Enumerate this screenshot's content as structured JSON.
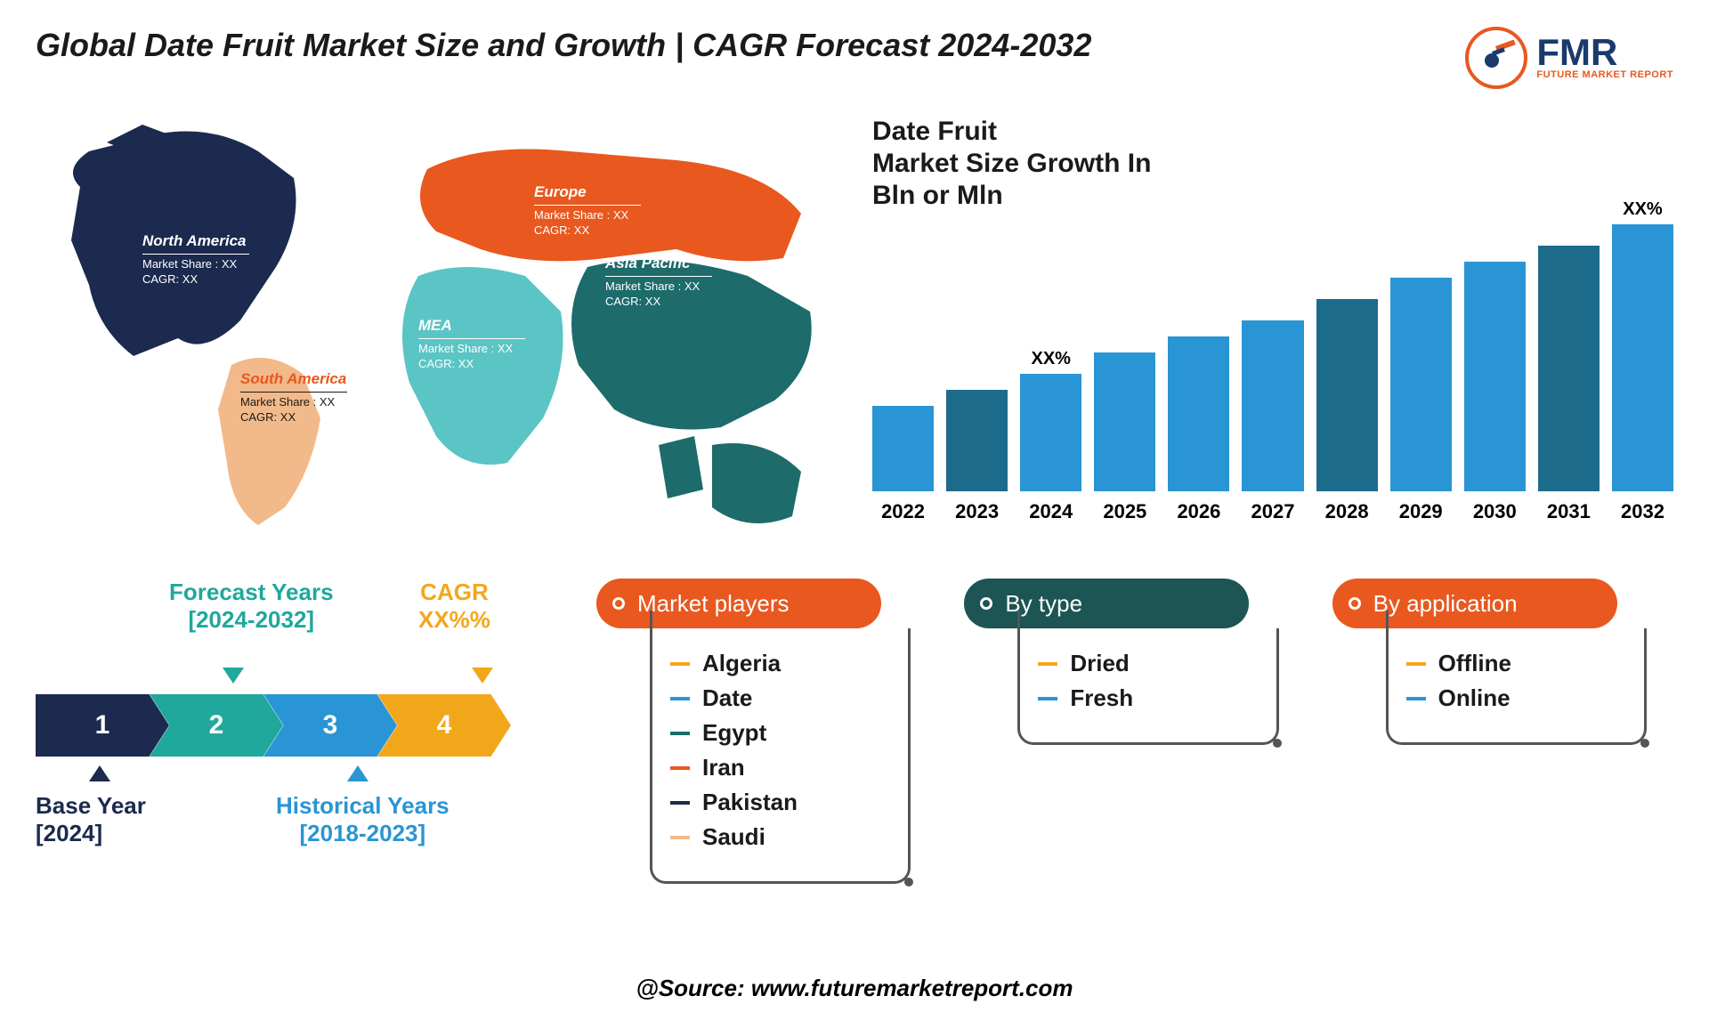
{
  "title": "Global Date Fruit Market Size and Growth | CAGR Forecast 2024-2032",
  "logo": {
    "fmr": "FMR",
    "sub": "FUTURE MARKET REPORT"
  },
  "colors": {
    "na": "#1b2a4e",
    "sa": "#f2b98a",
    "eu": "#e8581f",
    "mea": "#5bc4c4",
    "ap": "#1d6b6b",
    "bar_light": "#2a95d4",
    "bar_dark": "#1d6b8a",
    "tl1": "#1b2a4e",
    "tl2": "#1fa89b",
    "tl3": "#2a95d4",
    "tl4": "#f2a71b",
    "pill_players": "#e8581f",
    "pill_type": "#1d5454",
    "pill_app": "#e8581f",
    "text": "#1a1a1a",
    "teal_text": "#1fa89b",
    "blue_text": "#2a95d4",
    "orange_text": "#f2a71b"
  },
  "regions": {
    "na": {
      "name": "North America",
      "share": "Market Share : XX",
      "cagr": "CAGR: XX"
    },
    "sa": {
      "name": "South America",
      "share": "Market Share : XX",
      "cagr": "CAGR: XX"
    },
    "eu": {
      "name": "Europe",
      "share": "Market Share : XX",
      "cagr": "CAGR: XX"
    },
    "mea": {
      "name": "MEA",
      "share": "Market Share : XX",
      "cagr": "CAGR: XX"
    },
    "ap": {
      "name": "Asia Pacific",
      "share": "Market Share : XX",
      "cagr": "CAGR: XX"
    }
  },
  "barchart": {
    "title1": "Date Fruit",
    "title2": "Market Size Growth In",
    "title3": "Bln or Mln",
    "years": [
      "2022",
      "2023",
      "2024",
      "2025",
      "2026",
      "2027",
      "2028",
      "2029",
      "2030",
      "2031",
      "2032"
    ],
    "heights_pct": [
      32,
      38,
      44,
      52,
      58,
      64,
      72,
      80,
      86,
      92,
      100
    ],
    "dark_idx": [
      1,
      6,
      9
    ],
    "top_label": "XX%",
    "top_label_years": [
      "2024",
      "2032"
    ]
  },
  "timeline": {
    "base": {
      "label": "Base Year",
      "range": "[2024]"
    },
    "forecast": {
      "label": "Forecast Years",
      "range": "[2024-2032]"
    },
    "historical": {
      "label": "Historical Years",
      "range": "[2018-2023]"
    },
    "cagr": {
      "label": "CAGR",
      "range": "XX%%"
    },
    "steps": [
      "1",
      "2",
      "3",
      "4"
    ]
  },
  "pills": {
    "players": {
      "title": "Market players",
      "items": [
        "Algeria",
        "Date",
        "Egypt",
        "Iran",
        "Pakistan",
        "Saudi"
      ],
      "ticks": [
        "#f2a71b",
        "#2a95d4",
        "#1d6b6b",
        "#e8581f",
        "#1b2a4e",
        "#f2b98a"
      ]
    },
    "type": {
      "title": "By type",
      "items": [
        "Dried",
        "Fresh"
      ],
      "ticks": [
        "#f2a71b",
        "#2a95d4"
      ]
    },
    "app": {
      "title": "By application",
      "items": [
        "Offline",
        "Online"
      ],
      "ticks": [
        "#f2a71b",
        "#2a95d4"
      ]
    }
  },
  "source": "@Source: www.futuremarketreport.com"
}
